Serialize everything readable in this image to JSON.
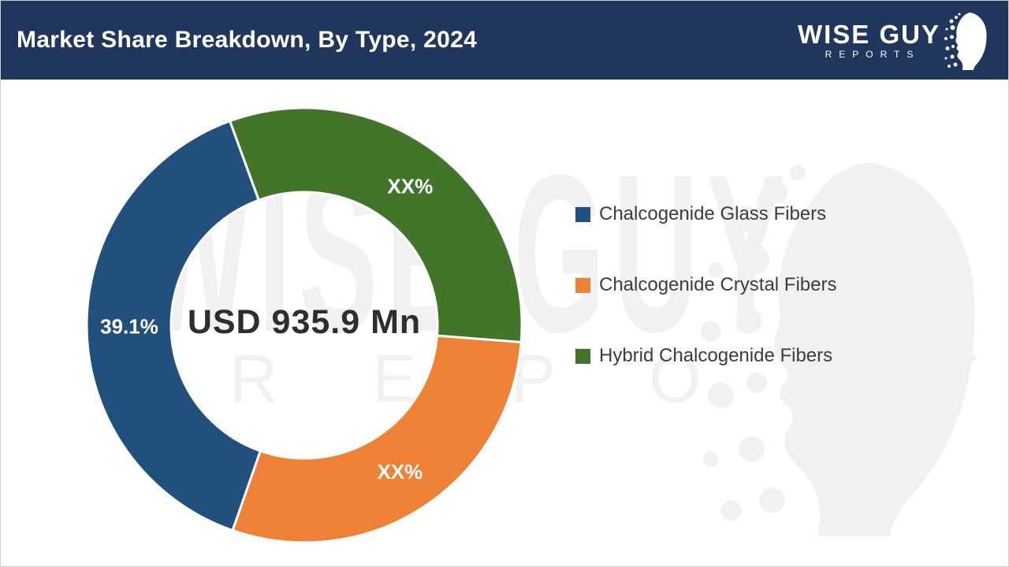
{
  "colors": {
    "header_bg": "#21365C",
    "border": "#CFCFCF",
    "watermark": "#F1F1F3",
    "legend_text": "#3C3C3C",
    "center_text": "#2E2E2E",
    "slice_blue": "#20507B",
    "slice_orange": "#EE8135",
    "slice_green": "#42742A"
  },
  "header": {
    "title": "Market Share Breakdown, By Type, 2024",
    "logo": {
      "line1": "WISE GUY",
      "line2": "REPORTS"
    }
  },
  "watermark": {
    "line1": "WISE GUY",
    "line2": "R E P O R T S"
  },
  "chart_data": {
    "type": "pie",
    "subtype": "donut",
    "title": "Market Share Breakdown, By Type, 2024",
    "center_label": "USD 935.9 Mn",
    "start_angle_deg": -20,
    "legend_position": "right",
    "segments": [
      {
        "name": "Hybrid Chalcogenide Fibers",
        "label": "XX%",
        "value_pct": 31.8,
        "color": "#42742A",
        "label_color": "#FFFFFF"
      },
      {
        "name": "Chalcogenide Crystal Fibers",
        "label": "XX%",
        "value_pct": 29.1,
        "color": "#EE8135",
        "label_color": "#FFFFFF"
      },
      {
        "name": "Chalcogenide Glass Fibers",
        "label": "39.1%",
        "value_pct": 39.1,
        "color": "#20507B",
        "label_color": "#FFFFFF"
      }
    ]
  },
  "legend": {
    "items": [
      {
        "label": "Chalcogenide Glass Fibers",
        "color": "#20507B"
      },
      {
        "label": "Chalcogenide Crystal Fibers",
        "color": "#EE8135"
      },
      {
        "label": "Hybrid Chalcogenide Fibers",
        "color": "#42742A"
      }
    ]
  }
}
